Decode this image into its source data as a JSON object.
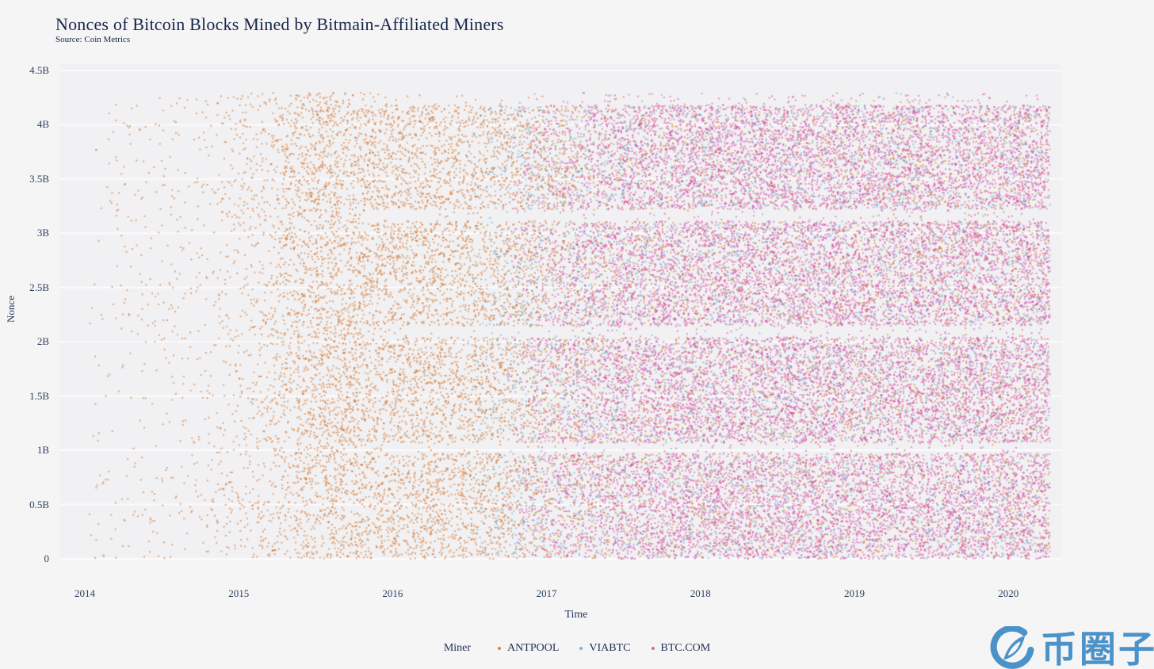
{
  "title": "Nonces of Bitcoin Blocks Mined by Bitmain-Affiliated Miners",
  "subtitle": "Source: Coin Metrics",
  "watermark": {
    "text": "币圈子",
    "color": "#4a92c8",
    "icon": "coin-swoosh-logo"
  },
  "colors": {
    "page_background": "#f5f5f6",
    "plot_background": "#f1f1f3",
    "gridline": "#fbfbfd",
    "title_text": "#16254a",
    "tick_text": "#2f3f5e"
  },
  "chart_data": {
    "type": "scatter",
    "title": "Nonces of Bitcoin Blocks Mined by Bitmain-Affiliated Miners",
    "source": "Source: Coin Metrics",
    "xlabel": "Time",
    "ylabel": "Nonce",
    "x_ticks": {
      "values": [
        2014,
        2015,
        2016,
        2017,
        2018,
        2019,
        2020
      ],
      "labels": [
        "2014",
        "2015",
        "2016",
        "2017",
        "2018",
        "2019",
        "2020"
      ]
    },
    "y_ticks": {
      "values_billions": [
        4.5,
        4,
        3.5,
        3,
        2.5,
        2,
        1.5,
        1,
        0.5,
        0
      ],
      "labels": [
        "4.5B",
        "4B",
        "3.5B",
        "3B",
        "2.5B",
        "2B",
        "1.5B",
        "1B",
        "0.5B",
        "0"
      ]
    },
    "y_range_billions": [
      0,
      4.5
    ],
    "nonce_max_billions": 4.295,
    "data_time_range": [
      2014.03,
      2020.27
    ],
    "gap_bands_billions": [
      [
        0.97,
        1.07
      ],
      [
        2.04,
        2.147
      ],
      [
        3.11,
        3.22
      ],
      [
        4.18,
        4.295
      ]
    ],
    "gap_bands_note": "sparse streaks just below each multiple of 2^30, emerging ~mid-2015",
    "gap_start_year": 2015.6,
    "gap_ramp_years": 0.35,
    "gap_suppression": 0.9,
    "point_alpha": 0.55,
    "legend": {
      "title": "Miner",
      "items": [
        {
          "label": "ANTPOOL",
          "color": "#d2691e"
        },
        {
          "label": "VIABTC",
          "color": "#5ba3cf"
        },
        {
          "label": "BTC.COM",
          "color": "#d63fa0"
        }
      ]
    },
    "series": [
      {
        "name": "ANTPOOL",
        "color": "#d2691e",
        "count": 15000,
        "density_envelope": [
          [
            2014.0,
            0.06
          ],
          [
            2014.5,
            0.1
          ],
          [
            2014.85,
            0.18
          ],
          [
            2015.1,
            0.3
          ],
          [
            2015.3,
            0.65
          ],
          [
            2015.5,
            1.0
          ],
          [
            2016.35,
            1.0
          ],
          [
            2016.9,
            0.7
          ],
          [
            2017.4,
            0.45
          ],
          [
            2018.0,
            0.38
          ],
          [
            2020.27,
            0.38
          ]
        ]
      },
      {
        "name": "VIABTC",
        "color": "#5ba3cf",
        "count": 5200,
        "density_envelope": [
          [
            2016.45,
            0.0
          ],
          [
            2016.65,
            0.8
          ],
          [
            2017.0,
            1.0
          ],
          [
            2020.27,
            1.0
          ]
        ]
      },
      {
        "name": "BTC.COM",
        "color": "#d63fa0",
        "count": 18000,
        "density_envelope": [
          [
            2016.7,
            0.0
          ],
          [
            2017.0,
            0.4
          ],
          [
            2017.5,
            0.85
          ],
          [
            2017.9,
            1.0
          ],
          [
            2020.27,
            1.0
          ]
        ]
      }
    ]
  }
}
